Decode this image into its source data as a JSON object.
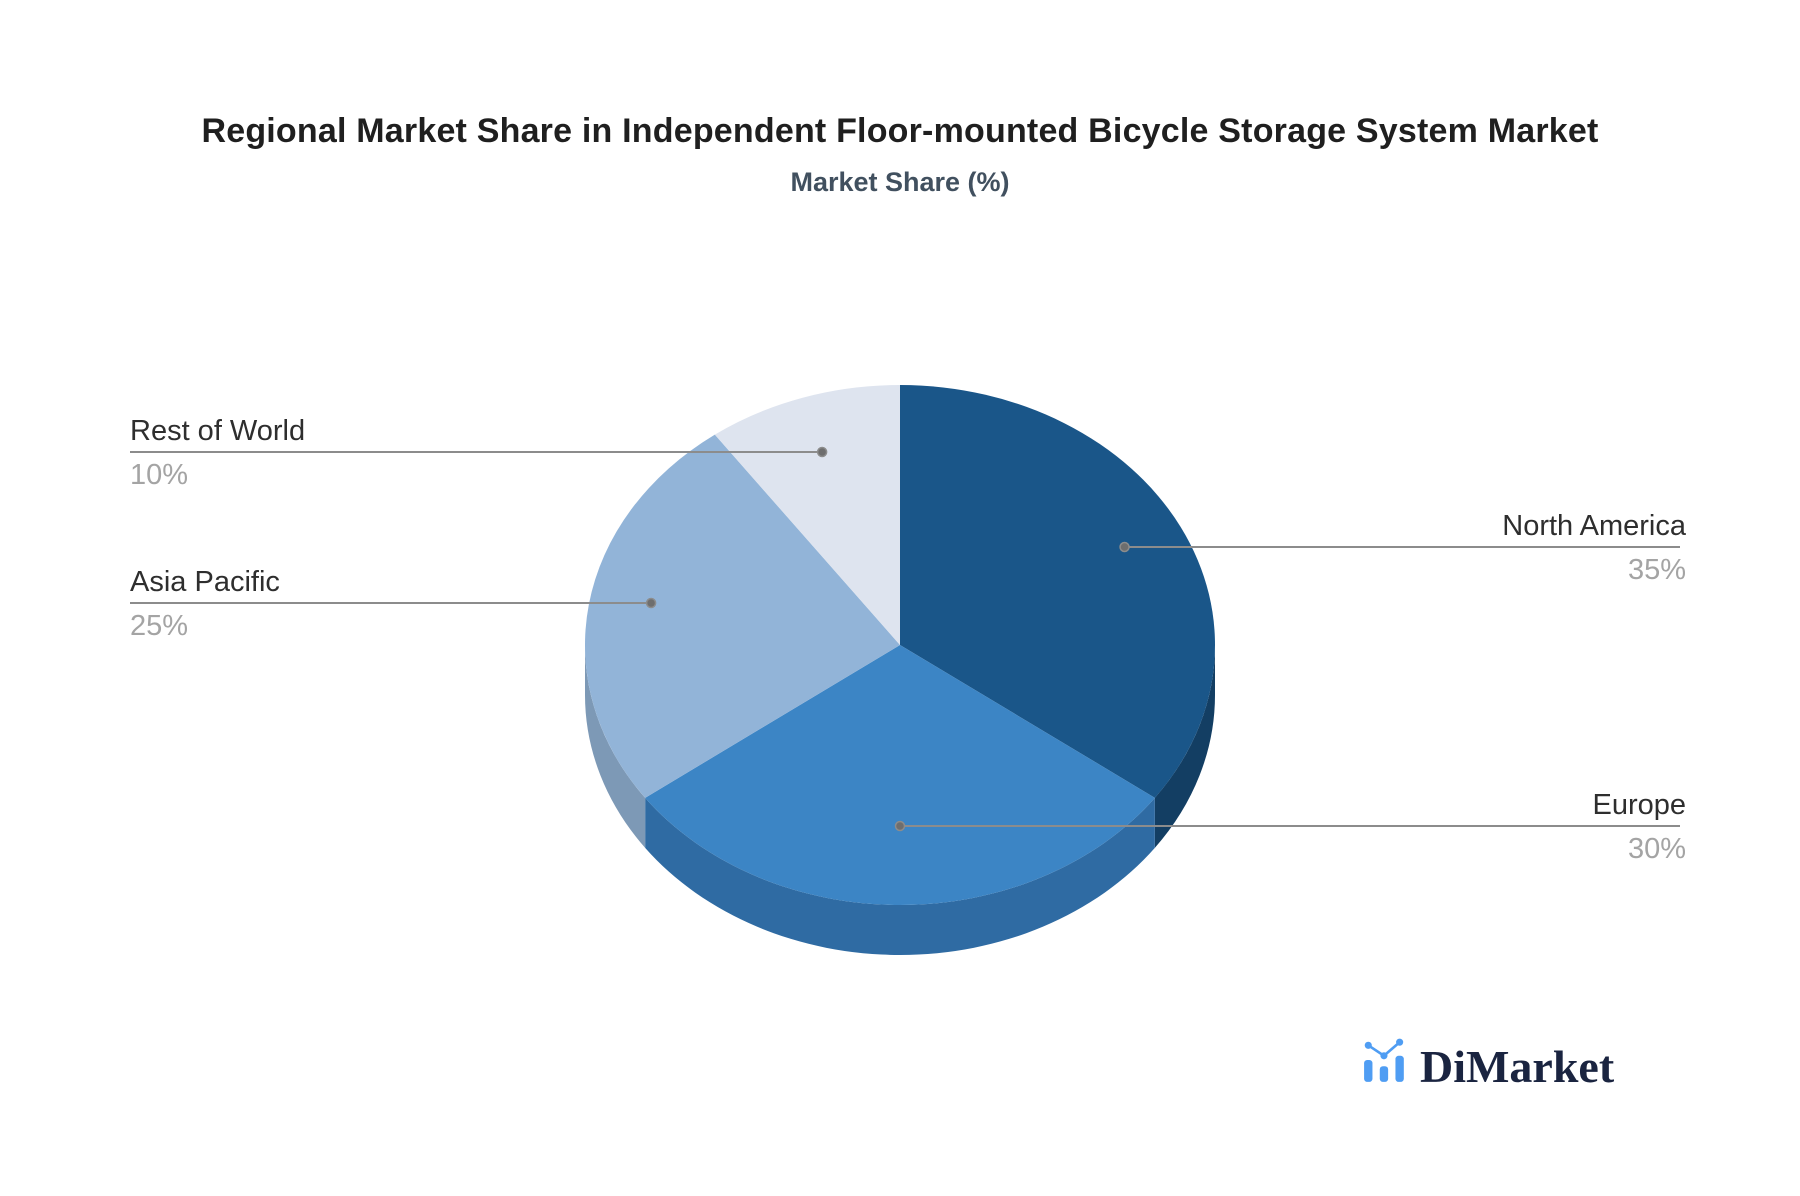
{
  "chart_data": {
    "type": "pie",
    "projection": "3d",
    "title": "Regional Market Share in Independent Floor-mounted Bicycle Storage System Market",
    "subtitle": "Market Share (%)",
    "unit": "%",
    "start_angle": "12-oclock-clockwise",
    "legend": "none",
    "slices": [
      {
        "label": "North America",
        "value": 35,
        "percent_label": "35%",
        "color": "#1a5689",
        "side_color": "#133e63",
        "label_side": "right"
      },
      {
        "label": "Europe",
        "value": 30,
        "percent_label": "30%",
        "color": "#3c85c5",
        "side_color": "#2f6ba3",
        "label_side": "right"
      },
      {
        "label": "Asia Pacific",
        "value": 25,
        "percent_label": "25%",
        "color": "#92b4d8",
        "side_color": "#7d99b6",
        "label_side": "left"
      },
      {
        "label": "Rest of World",
        "value": 10,
        "percent_label": "10%",
        "color": "#dee4ef",
        "side_color": "#c3cdde",
        "label_side": "left"
      }
    ],
    "leader_line_color": "#8c8c8c",
    "leader_dot_color": "#6e6e6e",
    "label_color": "#2e2e2e",
    "value_color": "#a4a4a4"
  },
  "branding": {
    "name": "DiMarket",
    "icon": "bar-line-chart-icon",
    "icon_color": "#4f9df3",
    "text_color": "#1a2440"
  }
}
